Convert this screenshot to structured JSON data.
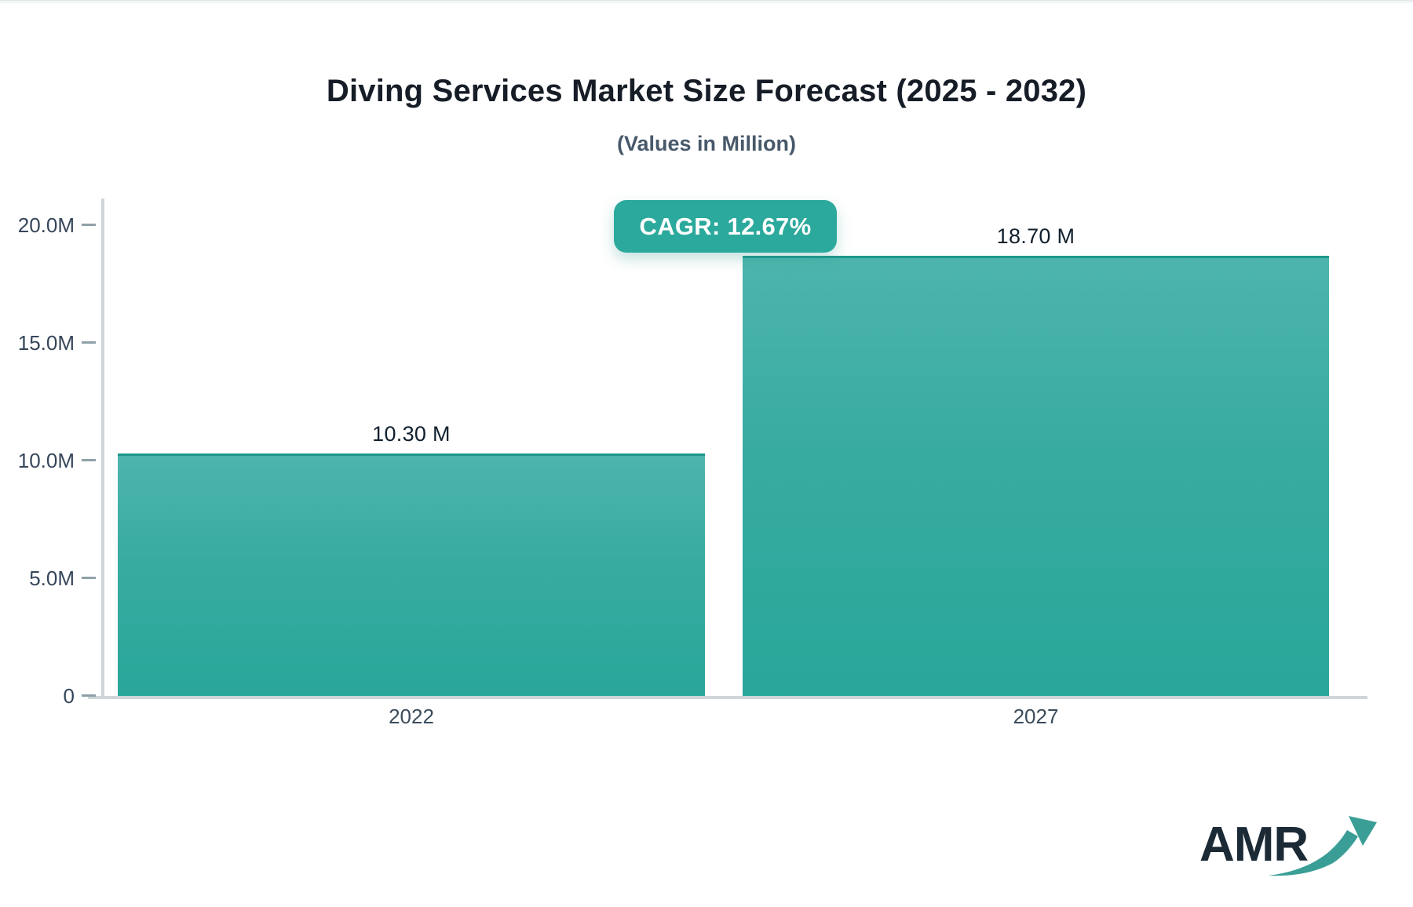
{
  "header": {
    "title": "Diving Services Market Size Forecast (2025 - 2032)",
    "subtitle": "(Values in Million)"
  },
  "badge": {
    "label": "CAGR: 12.67%",
    "bg_color": "#2ba99c"
  },
  "chart_data": {
    "type": "bar",
    "title": "Diving Services Market Size Forecast (2025 - 2032)",
    "subtitle": "(Values in Million)",
    "categories": [
      "2022",
      "2027"
    ],
    "values": [
      10.3,
      18.7
    ],
    "value_labels": [
      "10.30 M",
      "18.70 M"
    ],
    "unit": "M",
    "ylim": [
      0,
      20
    ],
    "yticks": [
      "20.0M",
      "15.0M",
      "10.0M",
      "5.0M",
      "0"
    ],
    "ytick_values": [
      20,
      15,
      10,
      5,
      0
    ],
    "grid": "off",
    "legend": "none",
    "bar_color_top": "#4db5ad",
    "bar_color_bottom": "#29a79a",
    "axis_color": "#cfd6da"
  },
  "logo": {
    "text": "AMR",
    "arrow_color": "#3a9e96"
  }
}
